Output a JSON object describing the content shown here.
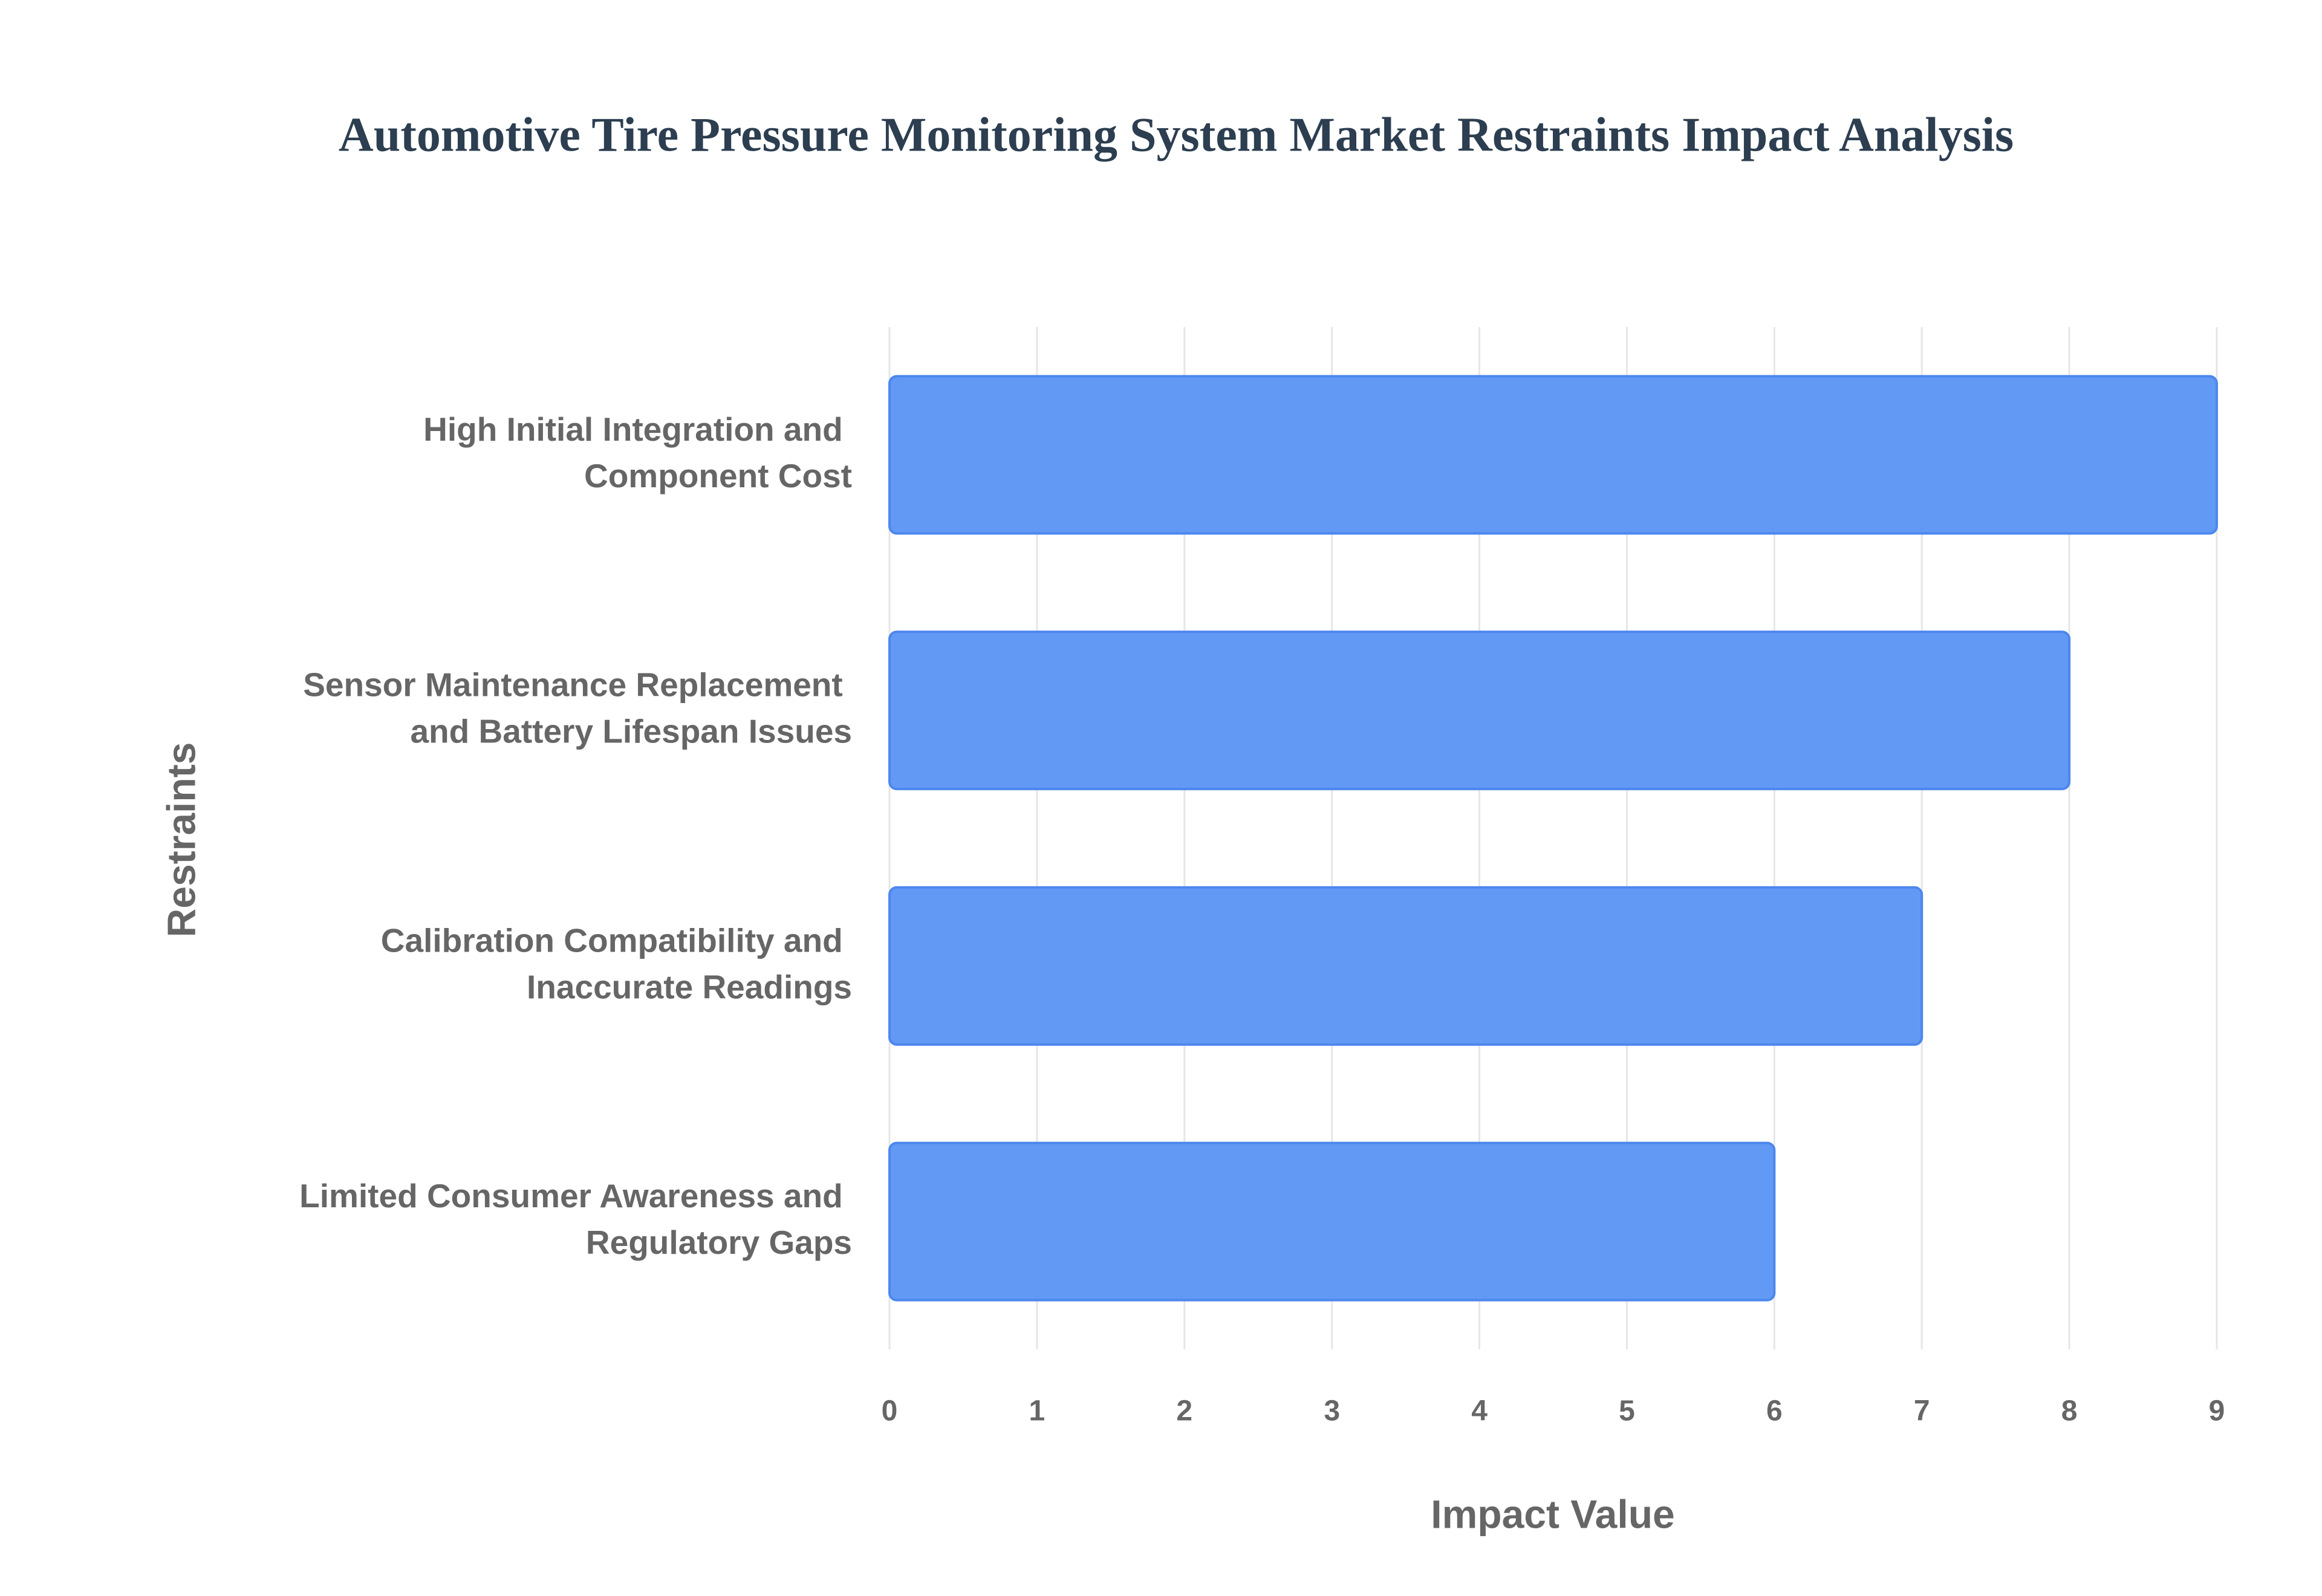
{
  "chart_data": {
    "type": "barh",
    "title": "Automotive Tire Pressure Monitoring System Market Restraints Impact Analysis",
    "x_label": "Impact Value",
    "y_label": "Restraints",
    "categories": [
      "High Initial Integration and Component Cost",
      "Sensor Maintenance Replacement and Battery Lifespan Issues",
      "Calibration Compatibility and Inaccurate Readings",
      "Limited Consumer Awareness and Regulatory Gaps"
    ],
    "values": [
      9,
      8,
      7,
      6
    ],
    "color": "#6199f5",
    "xlim": [
      0,
      9
    ],
    "xticks": [
      0,
      1,
      2,
      3,
      4,
      5,
      6,
      7,
      8,
      9
    ],
    "grid": true
  }
}
